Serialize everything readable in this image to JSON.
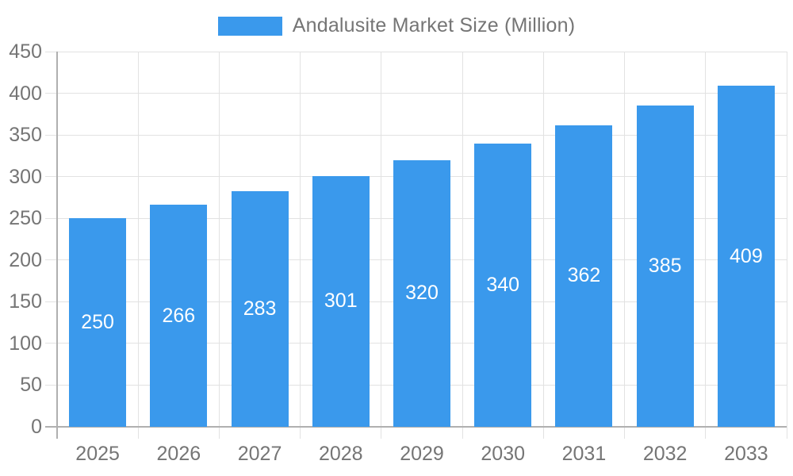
{
  "chart_data": {
    "type": "bar",
    "title": "Andalusite Market Size (Million)",
    "legend": [
      "Andalusite Market Size (Million)"
    ],
    "legend_position": "top-center",
    "categories": [
      "2025",
      "2026",
      "2027",
      "2028",
      "2029",
      "2030",
      "2031",
      "2032",
      "2033"
    ],
    "values": [
      250,
      266,
      283,
      301,
      320,
      340,
      362,
      385,
      409
    ],
    "xlabel": "",
    "ylabel": "",
    "ylim": [
      0,
      450
    ],
    "y_ticks": [
      0,
      50,
      100,
      150,
      200,
      250,
      300,
      350,
      400,
      450
    ],
    "grid": true,
    "value_labels_position": "inside-center",
    "colors": {
      "bar": "#3a99ec",
      "axis": "#b0b0b0",
      "gridline": "#e2e2e2",
      "tick_label": "#757575",
      "value_label": "#ffffff"
    }
  }
}
